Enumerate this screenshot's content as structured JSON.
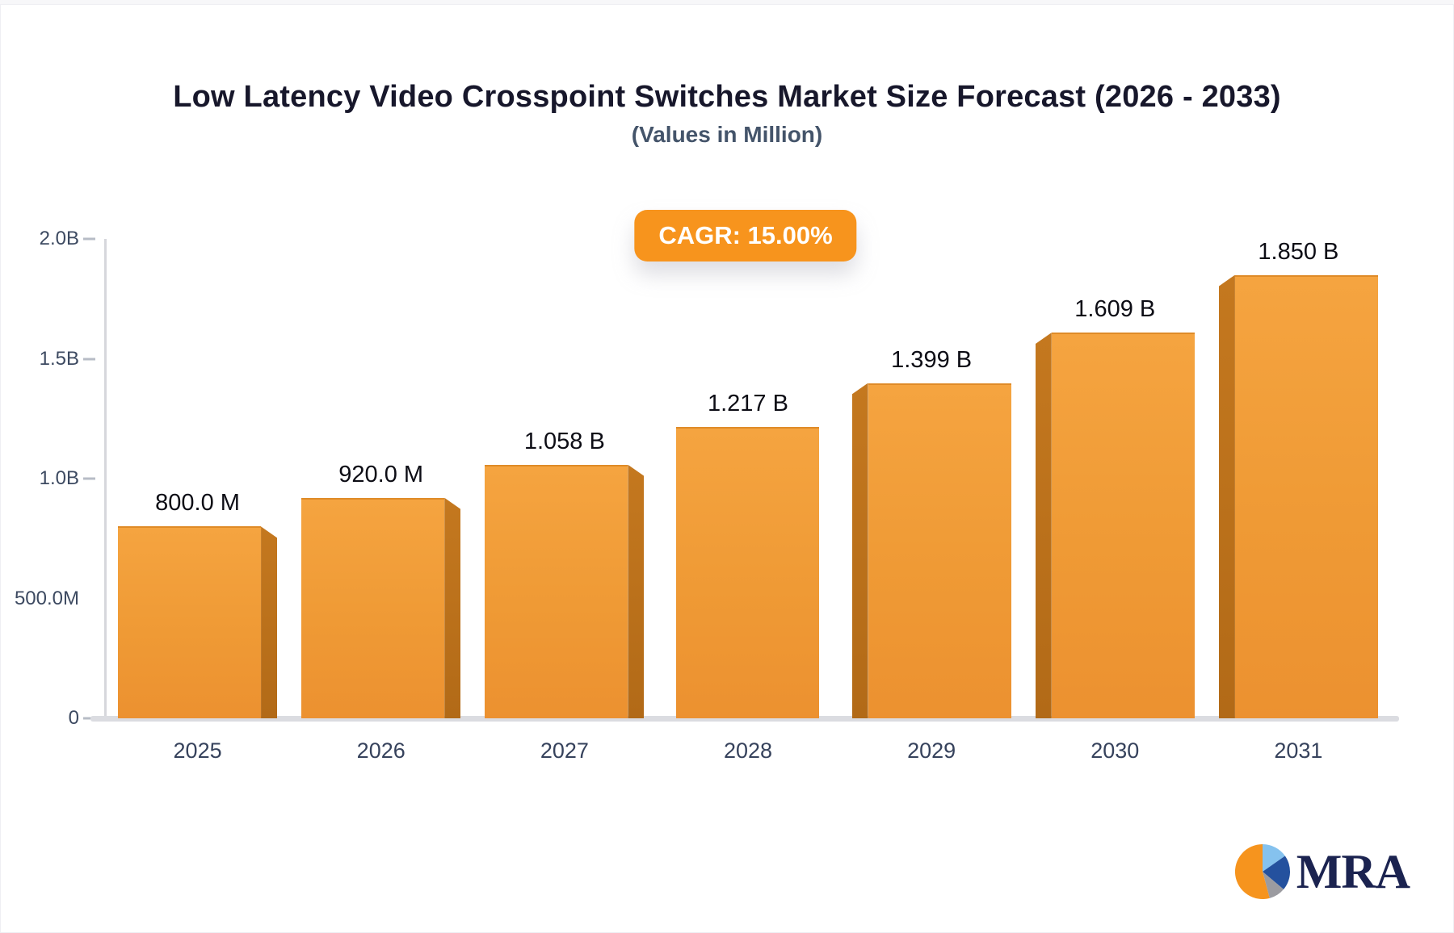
{
  "page": {
    "title": "Low Latency Video Crosspoint Switches Market Size Forecast (2026 - 2033)",
    "subtitle": "(Values in Million)"
  },
  "badge": {
    "cagr_label": "CAGR: 15.00%"
  },
  "chart_data": {
    "type": "bar",
    "title": "Low Latency Video Crosspoint Switches Market Size Forecast (2026 - 2033)",
    "subtitle": "(Values in Million)",
    "units": "millions",
    "categories": [
      "2025",
      "2026",
      "2027",
      "2028",
      "2029",
      "2030",
      "2031"
    ],
    "values_millions": [
      800,
      920,
      1058,
      1217,
      1399,
      1609,
      1850
    ],
    "value_labels": [
      "800.0 M",
      "920.0 M",
      "1.058 B",
      "1.217 B",
      "1.399 B",
      "1.609 B",
      "1.850 B"
    ],
    "cagr_percent": "15.00%",
    "ylim": [
      0,
      2000
    ],
    "grid": false,
    "y_axis": {
      "max": 2000,
      "ticks": [
        {
          "label": "2.0B",
          "value": 2000,
          "tick": true
        },
        {
          "label": "1.5B",
          "value": 1500,
          "tick": true
        },
        {
          "label": "1.0B",
          "value": 1000,
          "tick": true
        },
        {
          "label": "500.0M",
          "value": 500,
          "tick": false
        },
        {
          "label": "0",
          "value": 0,
          "tick": true
        }
      ]
    },
    "colors": {
      "bar_face_top": "#f5a440",
      "bar_face_bottom": "#ec9130",
      "bar_side_3d": "#ba6f1b",
      "badge_background": "#f7941d",
      "title_text": "#17172b",
      "subtitle_text": "#44546a",
      "axis_text": "#3d4a61",
      "axis_line": "#d6d7dc"
    }
  },
  "logo": {
    "text": "MRA",
    "icon": "pie-chart-icon",
    "icon_colors": [
      "#f6941e",
      "#85c2ee",
      "#24519e",
      "#9b9ba0"
    ]
  }
}
